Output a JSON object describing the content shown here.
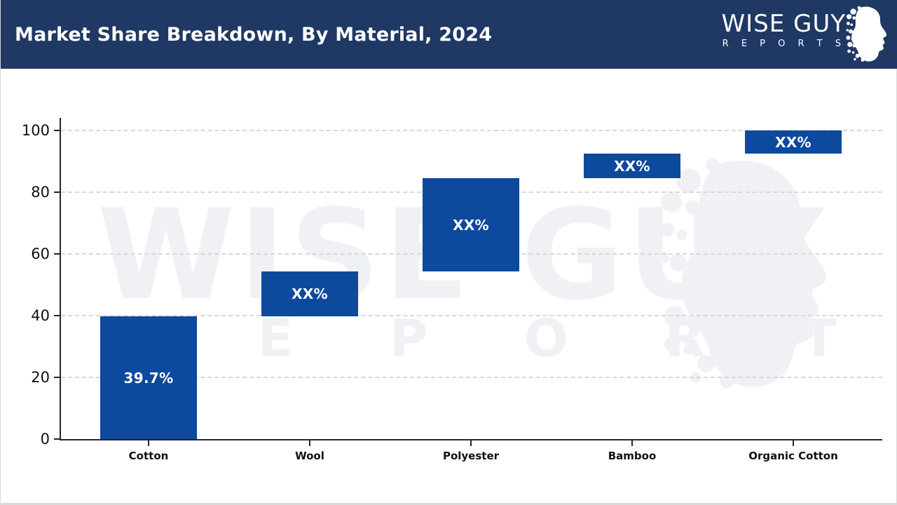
{
  "header": {
    "title": "Market Share Breakdown, By Material, 2024",
    "brand": {
      "name": "WISE GUY",
      "subtitle": "R E P O R T S"
    }
  },
  "watermark": {
    "line1": "WISE GUY",
    "line2": "R E P O R T S"
  },
  "chart_data": {
    "type": "bar",
    "subtype": "waterfall",
    "title": "Market Share Breakdown, By Material, 2024",
    "xlabel": "",
    "ylabel": "",
    "categories": [
      "Cotton",
      "Wool",
      "Polyester",
      "Bamboo",
      "Organic Cotton"
    ],
    "series": [
      {
        "name": "Market Share %",
        "starts": [
          0,
          39.7,
          54.3,
          84.5,
          92.5
        ],
        "values": [
          39.7,
          14.6,
          30.2,
          8.0,
          7.5
        ]
      }
    ],
    "bar_labels": [
      "39.7%",
      "XX%",
      "XX%",
      "XX%",
      "XX%"
    ],
    "yticks": [
      0,
      20,
      40,
      60,
      80,
      100
    ],
    "ylim": [
      0,
      105
    ],
    "grid": "horizontal-dashed",
    "legend": "none",
    "bar_color": "#0d499d",
    "bar_label_color": "#ffffff"
  },
  "colors": {
    "header_bg": "#1f3864",
    "bar": "#0d499d",
    "axis": "#262626",
    "grid": "#d8d8d8",
    "watermark": "#f0f1f4"
  }
}
